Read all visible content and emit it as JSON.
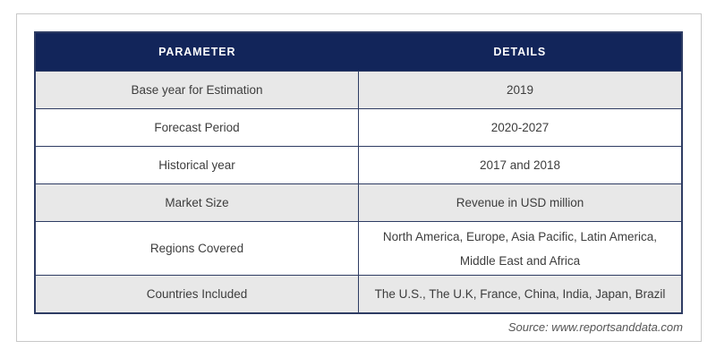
{
  "chart_data": {
    "type": "table",
    "columns": [
      "PARAMETER",
      "DETAILS"
    ],
    "rows": [
      [
        "Base year for Estimation",
        "2019"
      ],
      [
        "Forecast Period",
        "2020-2027"
      ],
      [
        "Historical year",
        "2017 and 2018"
      ],
      [
        "Market Size",
        "Revenue in USD million"
      ],
      [
        "Regions Covered",
        [
          "North America, Europe, Asia Pacific, Latin America,",
          "Middle East and Africa"
        ]
      ],
      [
        "Countries Included",
        "The U.S., The  U.K, France, China, India, Japan, Brazil"
      ]
    ]
  },
  "footer": {
    "source_label": "Source: www.reportsanddata.com"
  },
  "colors": {
    "header_bg": "#12255a",
    "header_text": "#ffffff",
    "shaded_row_bg": "#e8e8e8",
    "row_text": "#3d3d3d",
    "table_border": "#2e3c63",
    "frame_border": "#c8c8c8",
    "source_text": "#555555"
  }
}
